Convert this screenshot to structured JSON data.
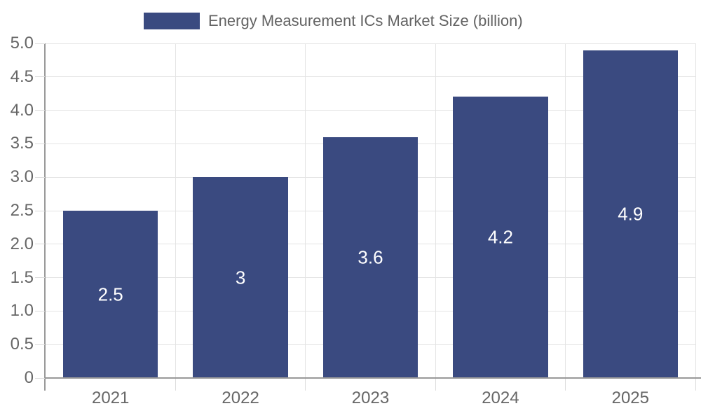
{
  "legend": {
    "label": "Energy Measurement ICs Market Size (billion)"
  },
  "chart_data": {
    "type": "bar",
    "title": "Energy Measurement ICs Market Size (billion)",
    "categories": [
      "2021",
      "2022",
      "2023",
      "2024",
      "2025"
    ],
    "values": [
      2.5,
      3,
      3.6,
      4.2,
      4.9
    ],
    "value_labels": [
      "2.5",
      "3",
      "3.6",
      "4.2",
      "4.9"
    ],
    "xlabel": "",
    "ylabel": "",
    "ylim": [
      0,
      5
    ],
    "ytick_values": [
      0,
      0.5,
      1,
      1.5,
      2,
      2.5,
      3,
      3.5,
      4,
      4.5,
      5
    ],
    "ytick_labels": [
      "0",
      "0.5",
      "1.0",
      "1.5",
      "2.0",
      "2.5",
      "3.0",
      "3.5",
      "4.0",
      "4.5",
      "5.0"
    ],
    "grid": true,
    "legend_position": "top",
    "bar_width_fraction": 0.73,
    "colors": {
      "bar": "#3a4a80",
      "grid": "#e4e4e4",
      "axis": "#999999",
      "tick_mark": "#dcdcdc",
      "tick_label": "#666666",
      "legend_label": "#636363",
      "value_label": "#ffffff",
      "background": "#ffffff"
    }
  }
}
